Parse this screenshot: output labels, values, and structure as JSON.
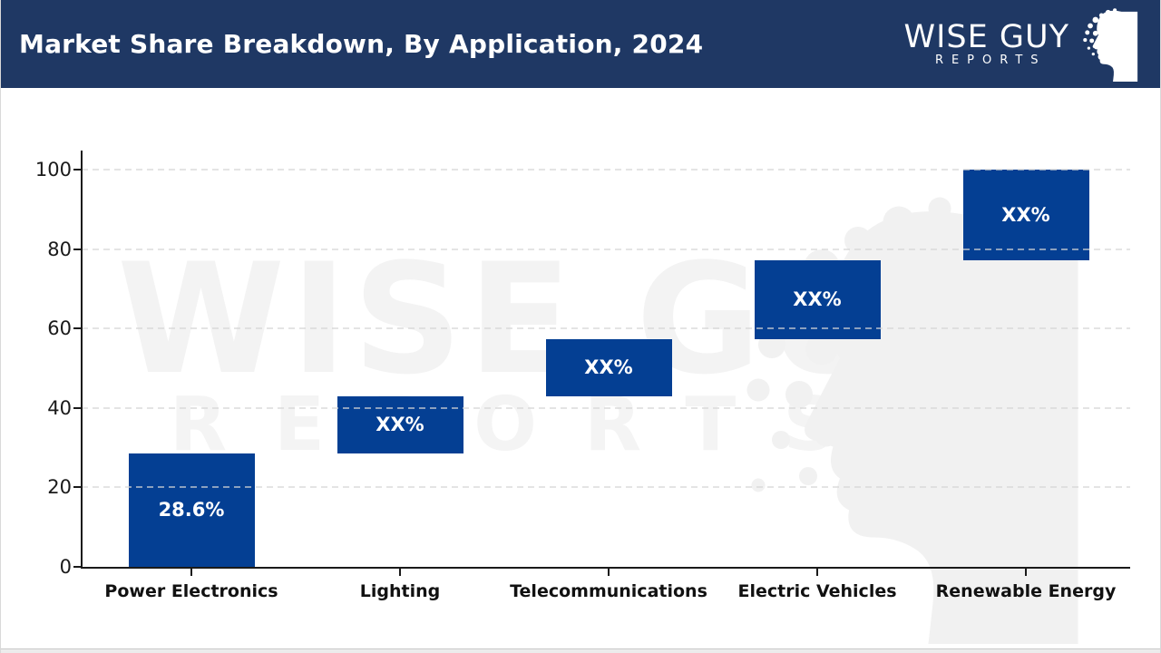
{
  "header": {
    "title": "Market Share Breakdown, By Application, 2024",
    "bg_color": "#1f3864",
    "logo": {
      "line1": "WISE GUY",
      "line2": "REPORTS"
    }
  },
  "watermark": {
    "line1": "WISE GUY",
    "line2": "REPORTS"
  },
  "chart_data": {
    "type": "bar",
    "subtype": "waterfall-floating-bars",
    "title": "Market Share Breakdown, By Application, 2024",
    "categories": [
      "Power Electronics",
      "Lighting",
      "Telecommunications",
      "Electric Vehicles",
      "Renewable Energy"
    ],
    "series": [
      {
        "name": "Market Share (%)",
        "segments": [
          {
            "category": "Power Electronics",
            "start": 0,
            "end": 28.6,
            "label": "28.6%"
          },
          {
            "category": "Lighting",
            "start": 28.6,
            "end": 43.0,
            "label": "XX%"
          },
          {
            "category": "Telecommunications",
            "start": 43.0,
            "end": 57.3,
            "label": "XX%"
          },
          {
            "category": "Electric Vehicles",
            "start": 57.3,
            "end": 77.2,
            "label": "XX%"
          },
          {
            "category": "Renewable Energy",
            "start": 77.2,
            "end": 100,
            "label": "XX%"
          }
        ]
      }
    ],
    "xlabel": "",
    "ylabel": "",
    "ylim": [
      0,
      100
    ],
    "yticks": [
      0,
      20,
      40,
      60,
      80,
      100
    ],
    "grid": "horizontal-dashed",
    "legend": "none",
    "bar_color": "#043f93",
    "bar_label_color": "#ffffff"
  }
}
